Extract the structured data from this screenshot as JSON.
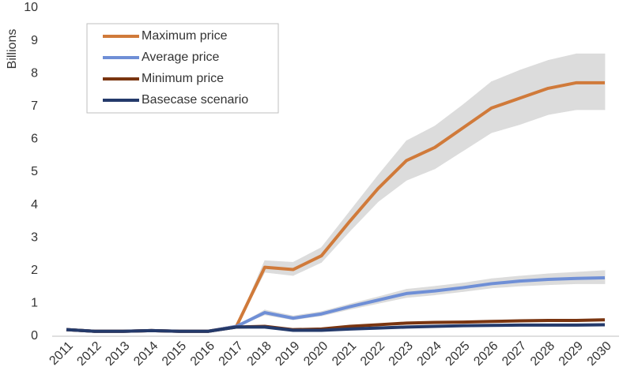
{
  "chart_data": {
    "type": "line",
    "y_label": "Billions",
    "categories": [
      "2011",
      "2012",
      "2013",
      "2014",
      "2015",
      "2016",
      "2017",
      "2018",
      "2019",
      "2020",
      "2021",
      "2022",
      "2023",
      "2024",
      "2025",
      "2026",
      "2027",
      "2028",
      "2029",
      "2030"
    ],
    "ylim": [
      0,
      10
    ],
    "yticks": [
      0,
      1,
      2,
      3,
      4,
      5,
      6,
      7,
      8,
      9,
      10
    ],
    "series": [
      {
        "name": "Maximum price",
        "color": "#d07a3a",
        "values": [
          0.2,
          0.15,
          0.15,
          0.17,
          0.15,
          0.15,
          0.3,
          2.1,
          2.03,
          2.45,
          3.5,
          4.5,
          5.35,
          5.75,
          6.35,
          6.95,
          7.25,
          7.55,
          7.72,
          7.72
        ]
      },
      {
        "name": "Average price",
        "color": "#6f8fd6",
        "values": [
          0.2,
          0.15,
          0.15,
          0.17,
          0.15,
          0.15,
          0.3,
          0.72,
          0.55,
          0.68,
          0.9,
          1.1,
          1.3,
          1.38,
          1.48,
          1.6,
          1.68,
          1.73,
          1.76,
          1.78
        ]
      },
      {
        "name": "Minimum price",
        "color": "#7a3510",
        "values": [
          0.2,
          0.15,
          0.15,
          0.17,
          0.15,
          0.15,
          0.28,
          0.3,
          0.2,
          0.22,
          0.3,
          0.35,
          0.4,
          0.42,
          0.43,
          0.45,
          0.47,
          0.48,
          0.48,
          0.5
        ]
      },
      {
        "name": "Basecase scenario",
        "color": "#243a6b",
        "values": [
          0.2,
          0.15,
          0.15,
          0.17,
          0.15,
          0.15,
          0.28,
          0.28,
          0.18,
          0.18,
          0.22,
          0.25,
          0.28,
          0.3,
          0.32,
          0.33,
          0.34,
          0.34,
          0.34,
          0.35
        ]
      }
    ],
    "bands": [
      {
        "color": "#dcdcdc",
        "lower": [
          null,
          null,
          null,
          null,
          null,
          null,
          0.3,
          1.95,
          1.85,
          2.25,
          3.2,
          4.1,
          4.75,
          5.1,
          5.65,
          6.2,
          6.45,
          6.75,
          6.9,
          6.9
        ],
        "upper": [
          null,
          null,
          null,
          null,
          null,
          null,
          0.3,
          2.3,
          2.25,
          2.7,
          3.8,
          4.9,
          5.95,
          6.4,
          7.05,
          7.75,
          8.1,
          8.4,
          8.6,
          8.6
        ]
      },
      {
        "color": "#dcdcdc",
        "lower": [
          null,
          null,
          null,
          null,
          null,
          null,
          0.3,
          0.65,
          0.5,
          0.62,
          0.82,
          1.0,
          1.18,
          1.26,
          1.36,
          1.47,
          1.53,
          1.57,
          1.6,
          1.6
        ],
        "upper": [
          null,
          null,
          null,
          null,
          null,
          null,
          0.3,
          0.8,
          0.62,
          0.75,
          0.98,
          1.2,
          1.43,
          1.52,
          1.62,
          1.75,
          1.83,
          1.9,
          1.95,
          2.0
        ]
      }
    ],
    "legend": "top-left"
  }
}
